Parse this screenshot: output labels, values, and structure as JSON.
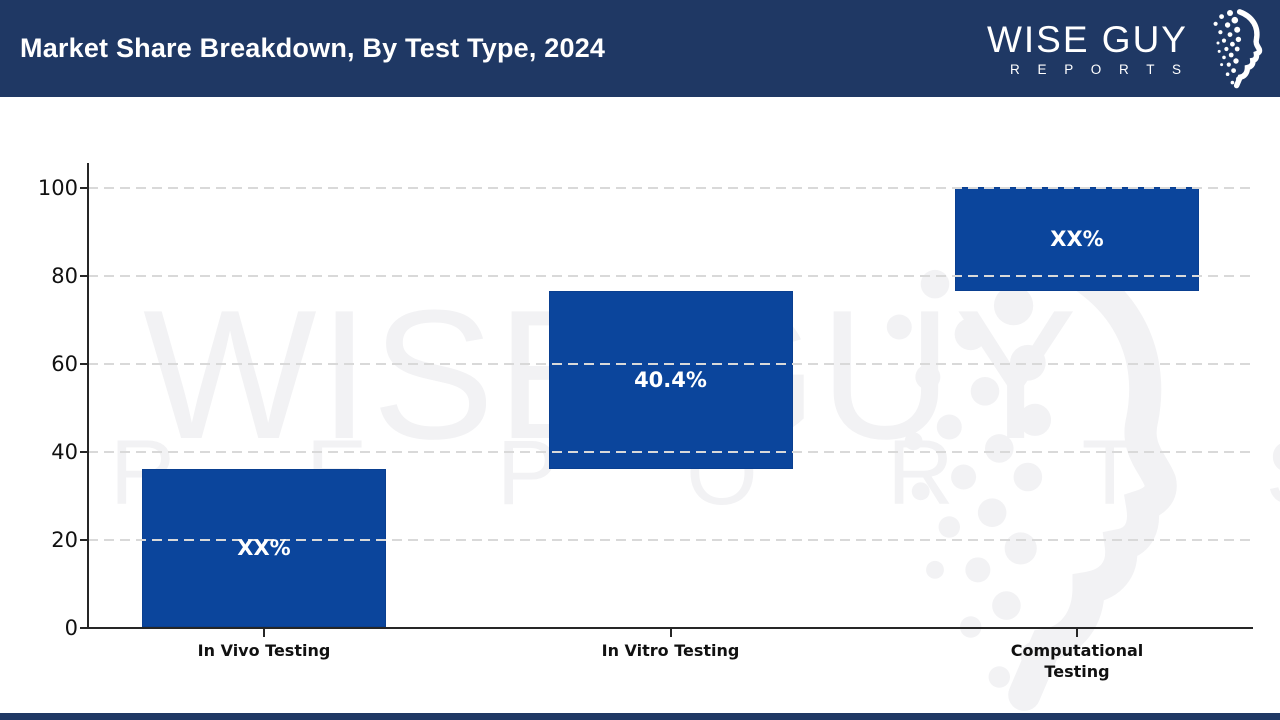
{
  "header": {
    "title": "Market Share Breakdown, By Test Type, 2024",
    "logo": {
      "line1": "WISE GUY",
      "line2": "R E P O R T S"
    }
  },
  "watermark": {
    "line1": "WISE GUY",
    "line2": "R E P O R T S"
  },
  "chart_data": {
    "type": "bar",
    "subtype": "waterfall-floating-bars",
    "title": "Market Share Breakdown, By Test Type, 2024",
    "categories": [
      "In Vivo Testing",
      "In Vitro Testing",
      "Computational Testing"
    ],
    "bars": [
      {
        "category": "In Vivo Testing",
        "start": 0,
        "end": 36,
        "value_label": "XX%"
      },
      {
        "category": "In Vitro Testing",
        "start": 36,
        "end": 76.4,
        "value_label": "40.4%"
      },
      {
        "category": "Computational Testing",
        "start": 76.4,
        "end": 100,
        "value_label": "XX%"
      }
    ],
    "yticks": [
      0,
      20,
      40,
      60,
      80,
      100
    ],
    "ylim": [
      0,
      105.5
    ],
    "xlabel": "",
    "ylabel": "",
    "grid": "horizontal-dashed",
    "legend": "none",
    "bar_color": "#0b459c",
    "bar_label_color": "#ffffff"
  },
  "colors": {
    "header_bg": "#1f3864",
    "footer_bg": "#1f3864",
    "bar": "#0b459c",
    "axis": "#262626",
    "gridline": "#d9d9d9",
    "watermark": "#f2f2f4",
    "title_text": "#ffffff"
  }
}
